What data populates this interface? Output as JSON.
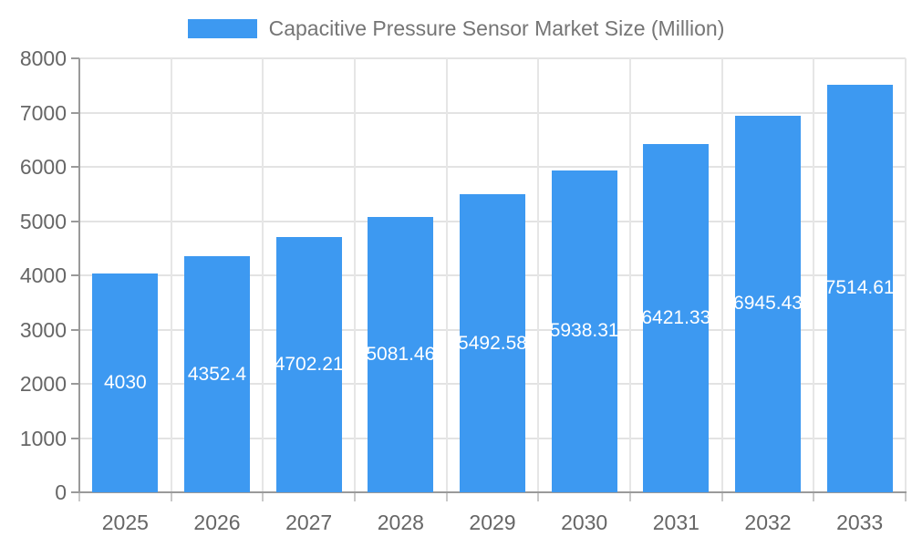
{
  "chart_data": {
    "type": "bar",
    "title": "Capacitive Pressure Sensor Market Size (Million)",
    "categories": [
      "2025",
      "2026",
      "2027",
      "2028",
      "2029",
      "2030",
      "2031",
      "2032",
      "2033"
    ],
    "values": [
      4030,
      4352.4,
      4702.21,
      5081.46,
      5492.58,
      5938.31,
      6421.33,
      6945.43,
      7514.61
    ],
    "value_labels": [
      "4030",
      "4352.4",
      "4702.21",
      "5081.46",
      "5492.58",
      "5938.31",
      "6421.33",
      "6945.43",
      "7514.61"
    ],
    "xlabel": "",
    "ylabel": "",
    "ylim": [
      0,
      8000
    ],
    "y_tick_interval": 1000,
    "y_tick_labels": [
      "0",
      "1000",
      "2000",
      "3000",
      "4000",
      "5000",
      "6000",
      "7000",
      "8000"
    ],
    "grid": true,
    "legend_position": "top-center",
    "legend_entries": [
      "Capacitive Pressure Sensor Market Size (Million)"
    ],
    "colors": {
      "bar": "#3d99f1",
      "bar_label_text": "#ffffff",
      "axis_label": "#666666",
      "title_text": "#757575",
      "gridline": "#e3e3e3",
      "axis_line": "#9a9a9a",
      "background": "#ffffff"
    }
  }
}
